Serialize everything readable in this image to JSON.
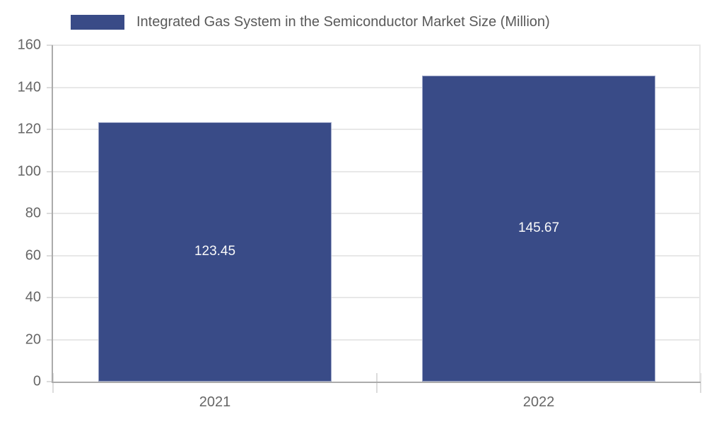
{
  "chart_data": {
    "type": "bar",
    "title": "",
    "legend": {
      "label": "Integrated Gas System in the Semiconductor Market Size (Million)",
      "position": "top-left"
    },
    "categories": [
      "2021",
      "2022"
    ],
    "series": [
      {
        "name": "Integrated Gas System in the Semiconductor Market Size (Million)",
        "values": [
          123.45,
          145.67
        ]
      }
    ],
    "value_labels": [
      "123.45",
      "145.67"
    ],
    "xlabel": "",
    "ylabel": "",
    "ylim": [
      0,
      160
    ],
    "yticks": [
      0,
      20,
      40,
      60,
      80,
      100,
      120,
      140,
      160
    ],
    "grid": true,
    "colors": {
      "bar": "#394B87",
      "bar_border": "#9AA3C6",
      "axis": "#ABABAB",
      "gridline": "#E8E8E8",
      "right_border": "#E8E8E8",
      "tick_mark": "#DCDCDC",
      "tick_label": "#666666",
      "legend_text": "#595959",
      "value_label": "#FAFAFA",
      "background": "#FFFFFF"
    }
  }
}
